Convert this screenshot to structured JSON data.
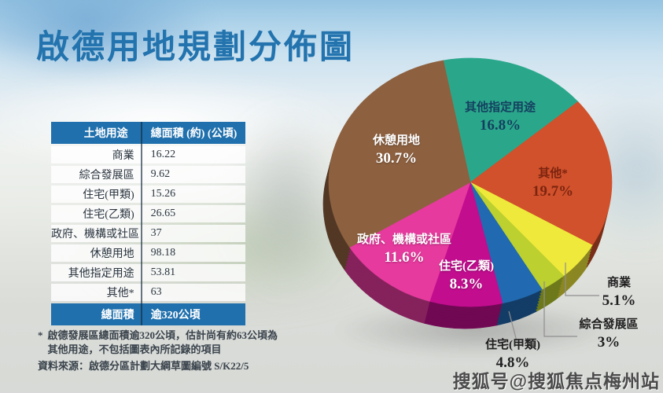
{
  "page": {
    "title": "啟德用地規劃分佈圖"
  },
  "table": {
    "col_headers": [
      "土地用途",
      "總面積 (約) (公頃)"
    ],
    "rows": [
      {
        "label": "商業",
        "value": "16.22"
      },
      {
        "label": "綜合發展區",
        "value": "9.62"
      },
      {
        "label": "住宅(甲類)",
        "value": "15.26"
      },
      {
        "label": "住宅(乙類)",
        "value": "26.65"
      },
      {
        "label": "政府、機構或社區",
        "value": "37"
      },
      {
        "label": "休憩用地",
        "value": "98.18"
      },
      {
        "label": "其他指定用途",
        "value": "53.81"
      },
      {
        "label": "其他*",
        "value": "63"
      }
    ],
    "total_row": {
      "label": "總面積",
      "value": "逾320公頃"
    }
  },
  "notes": {
    "footnote_marker": "*",
    "footnote": "啟德發展區總面積逾320公頃，估計尚有約63公頃為其他用途，不包括圖表內所記錄的項目",
    "source": "資料來源：啟德分區計劃大綱草圖編號 S/K22/5"
  },
  "watermark": "搜狐号@搜狐焦点梅州站",
  "colors": {
    "title_blue": "#2273ae",
    "table_header_blue": "#1f70ad"
  },
  "chart_data": {
    "type": "pie",
    "title": "啟德用地規劃分佈圖",
    "unit": "percent",
    "style": "3d-exploded-none",
    "start_angle_deg": -101,
    "legend_position": "labels-on-slices",
    "slices": [
      {
        "label": "其他指定用途",
        "value": 16.8,
        "display": "16.8%",
        "color": "#2aa78b",
        "text_color": "#14405f",
        "label_placement": "inside"
      },
      {
        "label": "其他*",
        "value": 19.7,
        "display": "19.7%",
        "color": "#d0512b",
        "text_color": "#7c2410",
        "label_placement": "inside"
      },
      {
        "label": "商業",
        "value": 5.1,
        "display": "5.1%",
        "color": "#efe93c",
        "text_color": "#1e1e1e",
        "label_placement": "outside"
      },
      {
        "label": "綜合發展區",
        "value": 3,
        "display": "3%",
        "color": "#bcd02f",
        "text_color": "#1e1e1e",
        "label_placement": "outside"
      },
      {
        "label": "住宅(甲類)",
        "value": 4.8,
        "display": "4.8%",
        "color": "#2169b0",
        "text_color": "#1e1e1e",
        "label_placement": "outside"
      },
      {
        "label": "住宅(乙類)",
        "value": 8.3,
        "display": "8.3%",
        "color": "#c20d8f",
        "text_color": "#ffffff",
        "label_placement": "inside"
      },
      {
        "label": "政府、機構或社區",
        "value": 11.6,
        "display": "11.6%",
        "color": "#e63a9e",
        "text_color": "#ffffff",
        "label_placement": "inside"
      },
      {
        "label": "休憩用地",
        "value": 30.7,
        "display": "30.7%",
        "color": "#8d6140",
        "text_color": "#ffffff",
        "label_placement": "inside"
      }
    ]
  }
}
